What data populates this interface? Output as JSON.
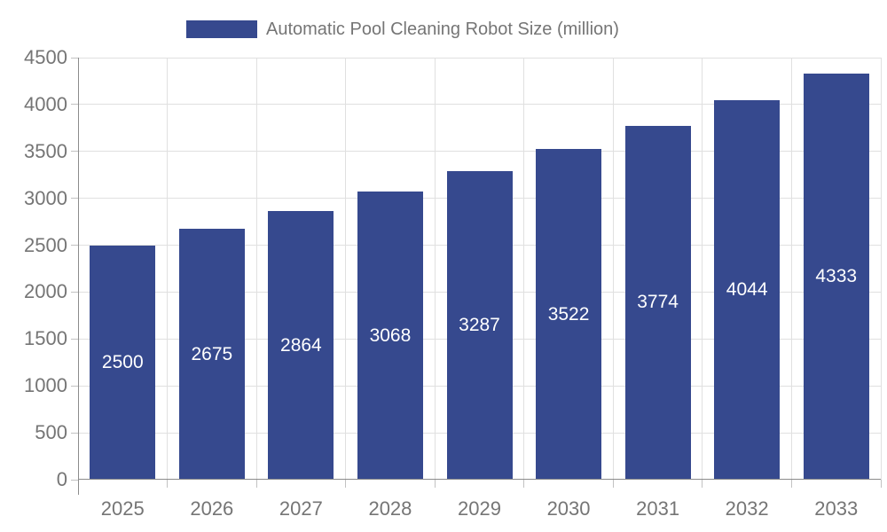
{
  "legend": {
    "label": "Automatic Pool Cleaning Robot Size (million)"
  },
  "chart_data": {
    "type": "bar",
    "title": "",
    "categories": [
      "2025",
      "2026",
      "2027",
      "2028",
      "2029",
      "2030",
      "2031",
      "2032",
      "2033"
    ],
    "values": [
      2500,
      2675,
      2864,
      3068,
      3287,
      3522,
      3774,
      4044,
      4333
    ],
    "series_name": "Automatic Pool Cleaning Robot Size (million)",
    "xlabel": "",
    "ylabel": "",
    "ylim": [
      0,
      4500
    ],
    "yticks": [
      0,
      500,
      1000,
      1500,
      2000,
      2500,
      3000,
      3500,
      4000,
      4500
    ],
    "grid": true,
    "legend_position": "top-center",
    "value_labels": "inside-center-white"
  },
  "colors": {
    "bar": "#36498e",
    "grid": "#e0e0e0",
    "axis": "#8c8c8c",
    "tick": "#c2c2c2",
    "tick_label": "#757575",
    "legend_text": "#757575",
    "bar_label": "#ffffff",
    "background": "#ffffff"
  }
}
